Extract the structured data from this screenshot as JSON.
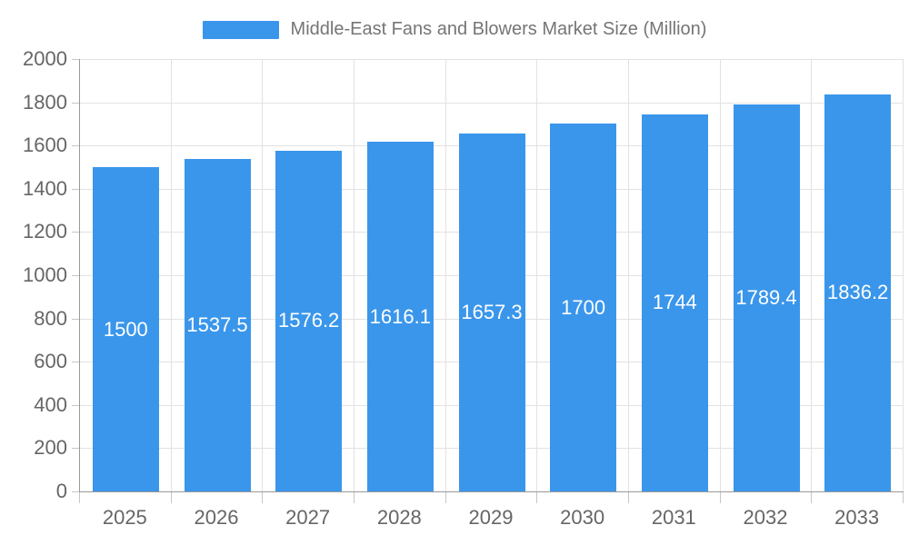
{
  "chart_data": {
    "type": "bar",
    "title": "Middle-East Fans and Blowers Market Size (Million)",
    "categories": [
      "2025",
      "2026",
      "2027",
      "2028",
      "2029",
      "2030",
      "2031",
      "2032",
      "2033"
    ],
    "values": [
      1500,
      1537.5,
      1576.2,
      1616.1,
      1657.3,
      1700,
      1744,
      1789.4,
      1836.2
    ],
    "ylim": [
      0,
      2000
    ],
    "ytick_step": 200,
    "ytick_labels": [
      "0",
      "200",
      "400",
      "600",
      "800",
      "1000",
      "1200",
      "1400",
      "1600",
      "1800",
      "2000"
    ],
    "grid": true,
    "legend_position": "top",
    "value_labels_position": "inside-middle",
    "colors": {
      "bar": "#3a96eb",
      "grid": "#e2e2e2",
      "axis": "#999999",
      "tick": "#c6c6c6",
      "axis_label": "#666666",
      "title": "#757575",
      "value_label": "#ffffff",
      "background": "#ffffff"
    }
  }
}
